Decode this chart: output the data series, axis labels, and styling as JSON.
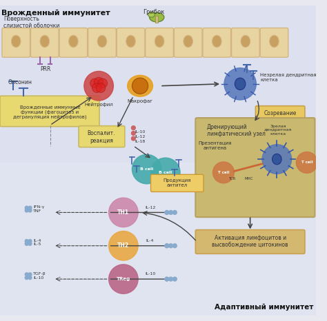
{
  "title": "",
  "bg_color": "#e8e8f0",
  "innate_label": "Врожденный иммунитет",
  "adaptive_label": "Адаптивный иммунитет",
  "mushroom_label": "Грибок",
  "surface_label": "Поверхность\nслизистой оболочки",
  "prr_label": "PRR",
  "opsonin_label": "Опсонин",
  "neutrophil_label": "Нейтрофил",
  "macrophage_label": "Макрофаг",
  "innate_func_label": "Врожденные иммунные\nфункции (фагоцитоз и\nдегрануляция нейтрофилов)",
  "inflam_label": "Воспалит.\nреакция",
  "il_group1": "IL-10\nIL-12\nIL-18",
  "immature_dc_label": "Незрелая дендритная\nклетка",
  "maturation_label": "Созревание",
  "draining_node_label": "Дренирующий\nлимфатический узел",
  "antigen_present_label": "Презентация\nантигена",
  "mature_dc_label": "Зрелая\nдендритная\nклетка",
  "bcell_label": "B cell",
  "antibody_label": "Продукция\nантител",
  "tcr_label": "TCR",
  "mhc_label": "MHC",
  "tcell_label": "T cell",
  "th1_label": "TH1",
  "th2_label": "TH2",
  "treg_label": "TReg",
  "ifn_label": "IFN-γ\nTNF",
  "il12_label": "IL-12",
  "il4_label": "IL-4",
  "il4_5_label": "IL-4\nIL-5",
  "il10_label": "IL-10",
  "tgf_label": "TGF-β\nIL-10",
  "activation_label": "Активация лимфоцитов и\nвысвобождение цитокинов",
  "cell_wall_color": "#d4b483",
  "cell_wall_fill": "#e8d4a0",
  "innate_box_color": "#c8b860",
  "innate_box_fill": "#e8d870",
  "inflam_box_color": "#c8b860",
  "inflam_box_fill": "#e8d870",
  "adaptive_box_color": "#c8a050",
  "adaptive_box_fill": "#d4b870",
  "lymph_node_box_color": "#b8a060",
  "lymph_node_box_fill": "#c8b870",
  "maturation_box_color": "#c8a050",
  "maturation_box_fill": "#e8c860",
  "activation_box_color": "#c8a050",
  "activation_box_fill": "#d4b870",
  "neutrophil_color": "#cc4444",
  "macrophage_color": "#e8a020",
  "immature_dc_color": "#5577bb",
  "mature_dc_color": "#5577bb",
  "bcell_color": "#44aaaa",
  "th1_color": "#cc88aa",
  "th2_color": "#e8a844",
  "treg_color": "#bb6688",
  "tcell_color": "#cc7744",
  "opsonin_color": "#4466aa",
  "mushroom_color": "#88aa44",
  "arrow_color": "#444444",
  "dashed_arrow_color": "#444444",
  "cytokine_color": "#88aacc"
}
